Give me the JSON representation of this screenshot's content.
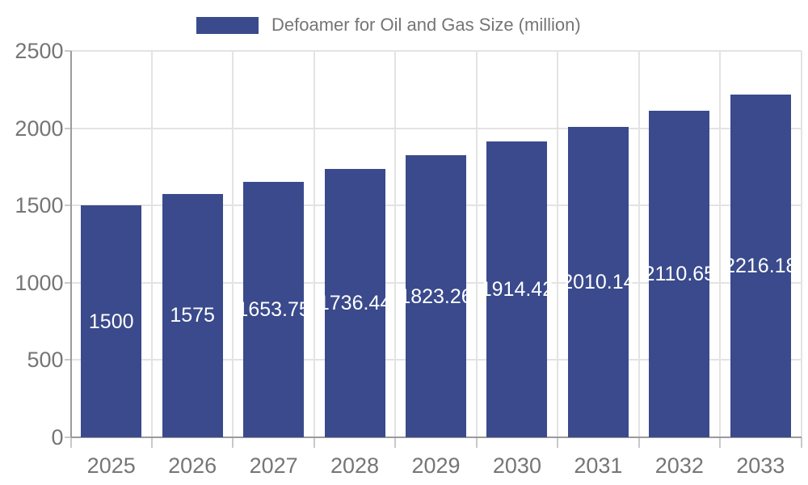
{
  "legend": {
    "label": "Defoamer for Oil and Gas Size (million)"
  },
  "chart_data": {
    "type": "bar",
    "title": "Defoamer for Oil and Gas Size (million)",
    "categories": [
      "2025",
      "2026",
      "2027",
      "2028",
      "2029",
      "2030",
      "2031",
      "2032",
      "2033"
    ],
    "values": [
      1500,
      1575,
      1653.75,
      1736.44,
      1823.26,
      1914.42,
      2010.14,
      2110.65,
      2216.18
    ],
    "bar_labels": [
      "1500",
      "1575",
      "1653.75",
      "1736.44",
      "1823.26",
      "1914.42",
      "2010.14",
      "2110.65",
      "2216.18"
    ],
    "xlabel": "",
    "ylabel": "",
    "ylim": [
      0,
      2500
    ],
    "yticks": [
      0,
      500,
      1000,
      1500,
      2000,
      2500
    ],
    "grid": true,
    "legend_position": "top",
    "bar_label_position": "middle",
    "colors": {
      "bar": "#3A4A8C",
      "grid": "#e3e3e3",
      "axis_line": "#9b9b9b",
      "tick": "#c9c9c9",
      "text": "#757575",
      "bar_label": "#ffffff",
      "background": "#ffffff"
    }
  }
}
